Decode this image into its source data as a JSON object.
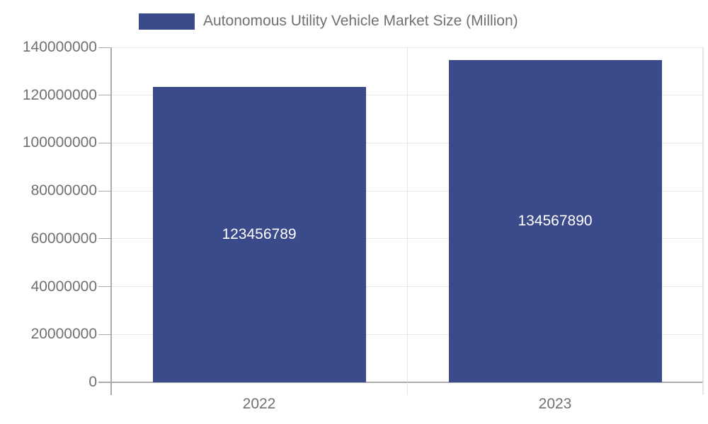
{
  "legend": {
    "label": "Autonomous Utility Vehicle Market Size (Million)"
  },
  "chart_data": {
    "type": "bar",
    "title": "Autonomous Utility Vehicle Market Size (Million)",
    "categories": [
      "2022",
      "2023"
    ],
    "series": [
      {
        "name": "Autonomous Utility Vehicle Market Size (Million)",
        "values": [
          123456789,
          134567890
        ]
      }
    ],
    "data_labels": [
      "123456789",
      "134567890"
    ],
    "xlabel": "",
    "ylabel": "",
    "ylim": [
      0,
      140000000
    ],
    "ytick_step": 20000000,
    "ytick_labels": [
      "0",
      "20000000",
      "40000000",
      "60000000",
      "80000000",
      "100000000",
      "120000000",
      "140000000"
    ],
    "grid": true,
    "legend_position": "top-left",
    "colors": {
      "bar": "#3A4A8A",
      "bar_label": "#FFFFFF",
      "axis": "#ABABAB",
      "grid": "#E6E6E6",
      "text": "#707070"
    }
  }
}
